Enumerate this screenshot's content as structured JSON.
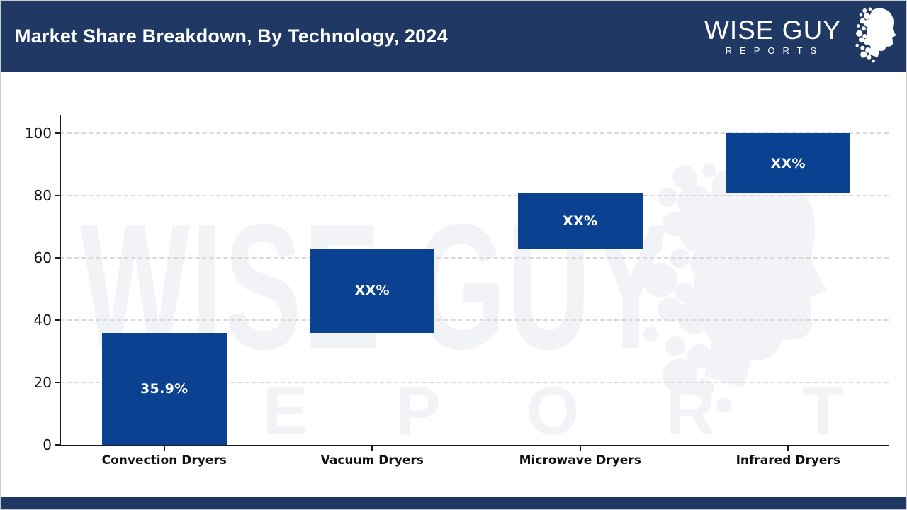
{
  "header": {
    "title": "Market Share Breakdown, By Technology, 2024",
    "bg_color": "#203864",
    "logo": {
      "line1": "WISE GUY",
      "line2": "REPORTS"
    }
  },
  "watermark": {
    "line1": "WISE GUY",
    "line2": "R E P O R T S"
  },
  "footer": {
    "bg_color": "#203864"
  },
  "chart_data": {
    "type": "bar",
    "subtype": "waterfall-stacked-share",
    "title": "Market Share Breakdown, By Technology, 2024",
    "categories": [
      "Convection Dryers",
      "Vacuum Dryers",
      "Microwave Dryers",
      "Infrared Dryers"
    ],
    "segments": [
      {
        "category": "Convection Dryers",
        "start": 0,
        "end": 35.9,
        "label": "35.9%"
      },
      {
        "category": "Vacuum Dryers",
        "start": 35.9,
        "end": 63.0,
        "label": "XX%"
      },
      {
        "category": "Microwave Dryers",
        "start": 63.0,
        "end": 80.6,
        "label": "XX%"
      },
      {
        "category": "Infrared Dryers",
        "start": 80.6,
        "end": 100,
        "label": "XX%"
      }
    ],
    "yticks": [
      0,
      20,
      40,
      60,
      80,
      100
    ],
    "ylim": [
      0,
      105
    ],
    "xlabel": "",
    "ylabel": "",
    "bar_color": "#0a4191",
    "grid": "horizontal-dashed",
    "grid_color": "#d9d9d9",
    "legend_position": "none"
  }
}
